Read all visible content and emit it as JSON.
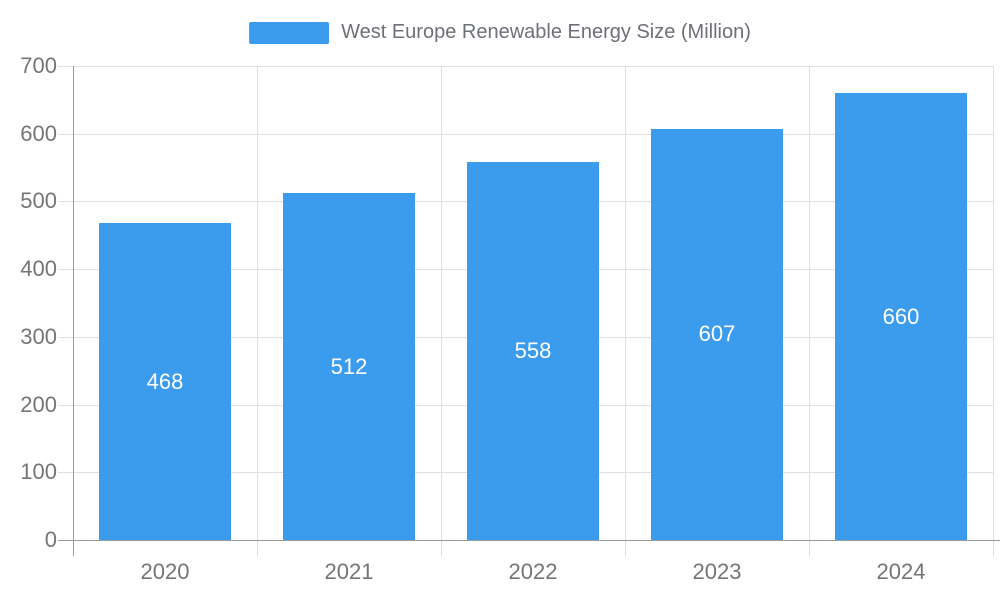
{
  "legend": {
    "label": "West Europe Renewable Energy Size (Million)"
  },
  "chart_data": {
    "type": "bar",
    "title": "West Europe Renewable Energy Size (Million)",
    "series_name": "West Europe Renewable Energy Size (Million)",
    "categories": [
      "2020",
      "2021",
      "2022",
      "2023",
      "2024"
    ],
    "values": [
      468,
      512,
      558,
      607,
      660
    ],
    "data_labels": [
      468,
      512,
      558,
      607,
      660
    ],
    "data_label_position": "inside-center",
    "xlabel": "",
    "ylabel": "",
    "ylim": [
      0,
      700
    ],
    "yticks": [
      0,
      100,
      200,
      300,
      400,
      500,
      600,
      700
    ],
    "grid": "both",
    "legend_position": "top-center"
  },
  "colors": {
    "bar_fill": "#3B9CEE",
    "data_label_text": "#FFFFFF",
    "grid_line": "#E0E0E0",
    "axis_line": "#999999",
    "tick_label_text": "#757575",
    "legend_text": "#6E7079",
    "background": "#FFFFFF"
  }
}
